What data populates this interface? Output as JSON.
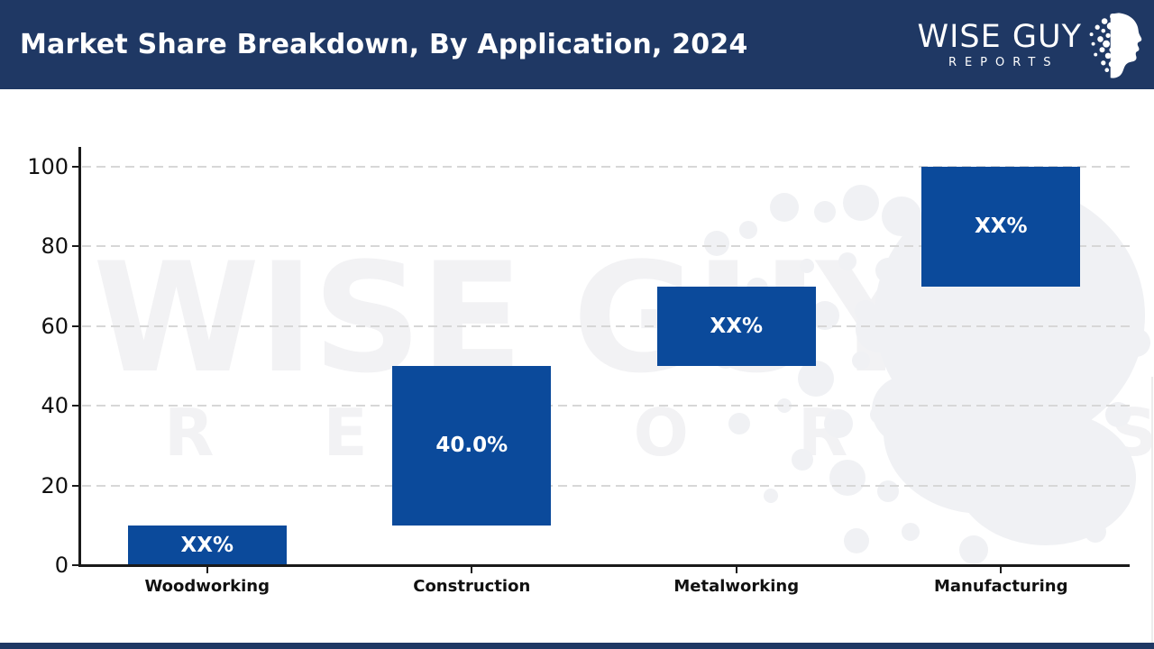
{
  "header": {
    "title": "Market Share Breakdown, By Application, 2024",
    "logo": {
      "line1": "WISE GUY",
      "line2": "REPORTS"
    }
  },
  "watermark": {
    "line1": "WISE GUY",
    "line2": "R E P O R T S"
  },
  "chart_data": {
    "type": "bar",
    "subtype": "waterfall-floating-bars",
    "title": "Market Share Breakdown, By Application, 2024",
    "categories": [
      "Woodworking",
      "Construction",
      "Metalworking",
      "Manufacturing"
    ],
    "series": [
      {
        "name": "Market Share (%)",
        "segments": [
          {
            "category": "Woodworking",
            "start": 0,
            "end": 10,
            "value_label": "XX%"
          },
          {
            "category": "Construction",
            "start": 10,
            "end": 50,
            "value_label": "40.0%"
          },
          {
            "category": "Metalworking",
            "start": 50,
            "end": 70,
            "value_label": "XX%"
          },
          {
            "category": "Manufacturing",
            "start": 70,
            "end": 100,
            "value_label": "XX%"
          }
        ]
      }
    ],
    "xlabel": "",
    "ylabel": "",
    "ylim": [
      0,
      100
    ],
    "yticks": [
      0,
      20,
      40,
      60,
      80,
      100
    ],
    "grid": "horizontal dashed",
    "legend_position": "none"
  },
  "colors": {
    "header_bg": "#1f3864",
    "footer_bg": "#1f3864",
    "bar": "#0b4a9b",
    "bar_label": "#ffffff",
    "grid": "#d7d7d7",
    "axis": "#1a1a1a",
    "watermark": "#f2f2f4"
  }
}
